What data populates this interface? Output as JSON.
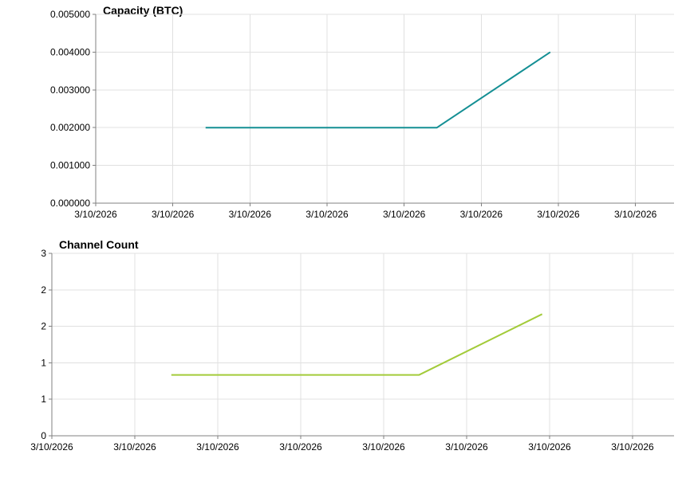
{
  "colors": {
    "grid": "#e0e0e0",
    "axis": "#808080",
    "text": "#000000",
    "capacity_line": "#148f94",
    "channel_line": "#a3cb3a"
  },
  "chart_data": [
    {
      "type": "line",
      "title": "Capacity (BTC)",
      "xlabel": "",
      "ylabel": "",
      "ylim": [
        0,
        0.005
      ],
      "grid": true,
      "legend": "none",
      "y_ticks": [
        "0.005000",
        "0.004000",
        "0.003000",
        "0.002000",
        "0.001000",
        "0.000000"
      ],
      "x_tick_labels": [
        "3/10/2026",
        "3/10/2026",
        "3/10/2026",
        "3/10/2026",
        "3/10/2026",
        "3/10/2026",
        "3/10/2026",
        "3/10/2026"
      ],
      "series": [
        {
          "name": "Capacity (BTC)",
          "color": "#148f94",
          "points": [
            {
              "x_frac": 0.19,
              "y": 0.002
            },
            {
              "x_frac": 0.59,
              "y": 0.002
            },
            {
              "x_frac": 0.786,
              "y": 0.004
            }
          ]
        }
      ]
    },
    {
      "type": "line",
      "title": "Channel Count",
      "xlabel": "",
      "ylabel": "",
      "ylim": [
        0,
        3
      ],
      "grid": true,
      "legend": "none",
      "y_ticks": [
        "3",
        "2",
        "2",
        "1",
        "1",
        "0"
      ],
      "x_tick_labels": [
        "3/10/2026",
        "3/10/2026",
        "3/10/2026",
        "3/10/2026",
        "3/10/2026",
        "3/10/2026",
        "3/10/2026",
        "3/10/2026"
      ],
      "series": [
        {
          "name": "Channel Count",
          "color": "#a3cb3a",
          "points": [
            {
              "x_frac": 0.192,
              "y": 1
            },
            {
              "x_frac": 0.59,
              "y": 1
            },
            {
              "x_frac": 0.788,
              "y": 2
            }
          ]
        }
      ]
    }
  ]
}
